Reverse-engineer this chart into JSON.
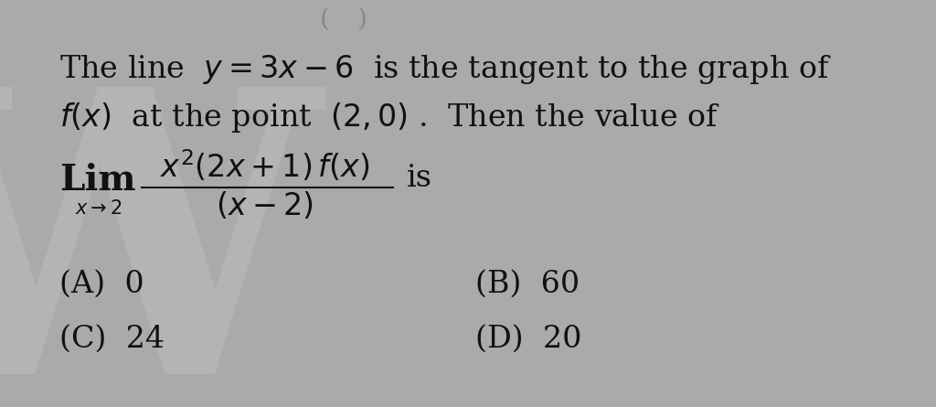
{
  "bg_color": "#aaaaaa",
  "text_color": "#111111",
  "figsize": [
    10.24,
    4.45
  ],
  "dpi": 100,
  "line1": "The line  $y = 3x - 6$  is the tangent to the graph of",
  "line2": "$f(x)$  at the point  $(2, 0)$ .  Then the value of",
  "lim_label": "Lim",
  "lim_sub": "$x\\to2$",
  "numerator": "$x^2(2x+1)\\,f(x)$",
  "denominator": "$(x-2)$",
  "is_text": "is",
  "optA": "(A)  0",
  "optB": "(B)  60",
  "optC": "(C)  24",
  "optD": "(D)  20",
  "watermark_text": "W",
  "watermark_color": "#bbbbbb",
  "top_paren": "(",
  "top_paren2": ")"
}
